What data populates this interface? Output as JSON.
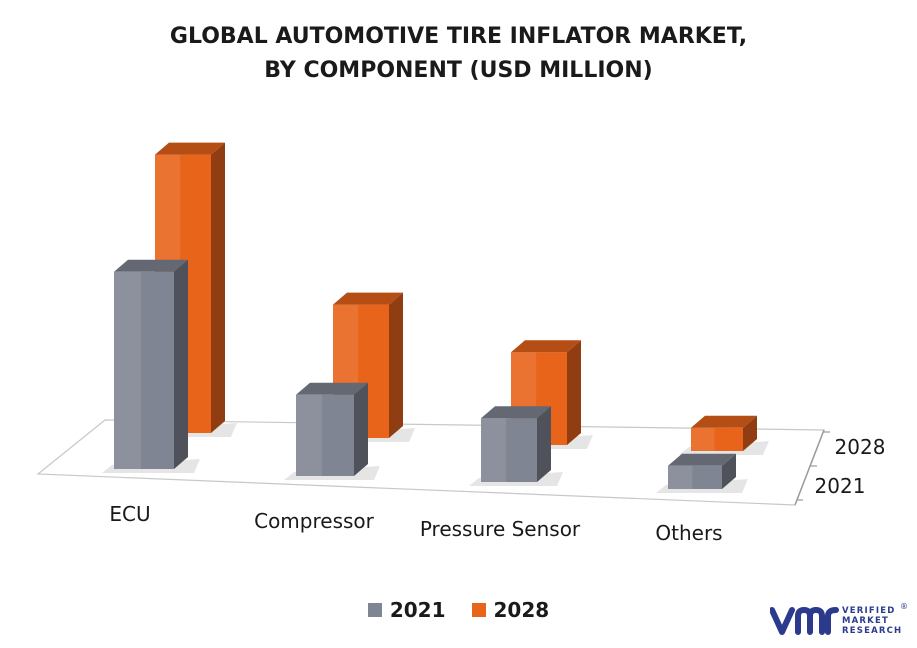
{
  "title_lines": [
    "GLOBAL AUTOMOTIVE TIRE INFLATOR MARKET,",
    "BY COMPONENT (USD MILLION)"
  ],
  "legend": [
    {
      "label": "2021",
      "color": "#7f8592"
    },
    {
      "label": "2028",
      "color": "#e8641b"
    }
  ],
  "brand": {
    "lines": [
      "VERIFIED",
      "MARKET",
      "RESEARCH"
    ],
    "registered": "®",
    "color": "#2b3a8c"
  },
  "chart_data": {
    "type": "bar",
    "categories": [
      "ECU",
      "Compressor",
      "Pressure Sensor",
      "Others"
    ],
    "series": [
      {
        "name": "2021",
        "values": [
          170,
          70,
          55,
          20
        ],
        "color": "#7f8592"
      },
      {
        "name": "2028",
        "values": [
          240,
          115,
          80,
          20
        ],
        "color": "#e8641b"
      }
    ],
    "depth_labels": [
      "2028",
      "2021"
    ],
    "title": "GLOBAL AUTOMOTIVE TIRE INFLATOR MARKET, BY COMPONENT (USD MILLION)",
    "ylim": [
      0,
      250
    ],
    "grid": false,
    "legend_position": "bottom"
  }
}
